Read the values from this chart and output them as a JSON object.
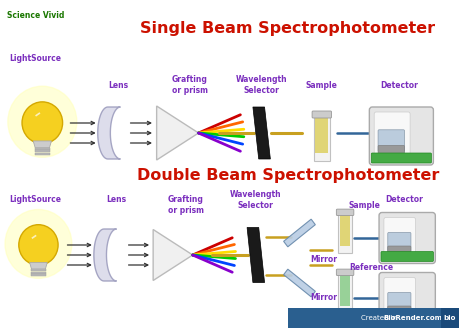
{
  "title_single": "Single Beam Spectrophotometer",
  "title_double": "Double Beam Spectrophotometer",
  "title_color": "#cc1100",
  "title_double_color": "#cc1100",
  "bg_color": "#ffffff",
  "label_color": "#7b2fbe",
  "lightsource_label": "LightSource",
  "lens_label": "Lens",
  "grating_label": "Grafting\nor prism",
  "wavelength_label": "Wavelength\nSelector",
  "sample_label": "Sample",
  "detector_label": "Detector",
  "mirror_label": "Mirror",
  "reference_label": "Reference",
  "science_vivid_text": "Science Vivid",
  "lightsource_label_color": "#7b2fbe",
  "biorender_text": "Created in ",
  "biorender_text2": "BioRender.com",
  "arrow_color": "#333333",
  "beam_gold": "#c8a020",
  "beam_blue": "#336699",
  "sample_liquid_color": "#ddd060",
  "reference_liquid_color": "#88cc88",
  "mirror_fc": "#b8cce4",
  "mirror_ec": "#6688aa"
}
